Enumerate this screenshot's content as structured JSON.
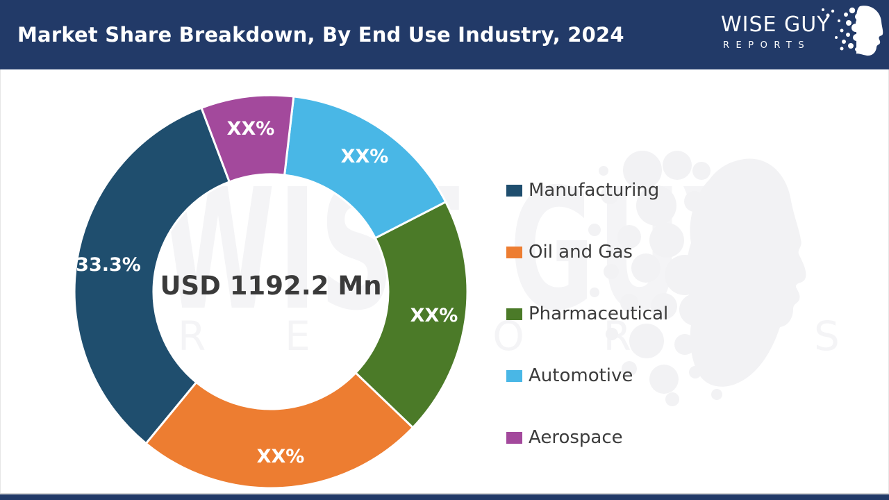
{
  "header": {
    "title": "Market Share Breakdown, By End Use Industry, 2024",
    "logo": {
      "line1": "WISE GUY",
      "line2": "REPORTS",
      "icon": "head-profile-dots-icon"
    }
  },
  "watermark": {
    "line1": "WISE GUY",
    "line2": "REPORTS",
    "icon": "head-profile-dots-icon"
  },
  "chart_data": {
    "type": "pie",
    "subtype": "donut",
    "title": "Market Share Breakdown, By End Use Industry, 2024",
    "center_label": "USD 1192.2 Mn",
    "start_angle_deg": 339.3,
    "direction": "counterclockwise",
    "inner_radius_ratio": 0.6,
    "legend_position": "right",
    "segments": [
      {
        "name": "Manufacturing",
        "label": "33.3%",
        "value_pct": 33.3,
        "color": "#1F4E6E"
      },
      {
        "name": "Oil and Gas",
        "label": "XX%",
        "value_pct": 23.8,
        "color": "#ED7D31"
      },
      {
        "name": "Pharmaceutical",
        "label": "XX%",
        "value_pct": 19.7,
        "color": "#4B7A28"
      },
      {
        "name": "Automotive",
        "label": "XX%",
        "value_pct": 15.6,
        "color": "#49B7E6"
      },
      {
        "name": "Aerospace",
        "label": "XX%",
        "value_pct": 7.6,
        "color": "#A3499C"
      }
    ]
  },
  "colors": {
    "header_bg": "#223A68",
    "footer_bg": "#223A68",
    "title_text": "#FFFFFF",
    "segment_label_text": "#FFFFFF",
    "center_text": "#3A3A3A",
    "legend_text": "#3C3C3C",
    "watermark_text": "#F4F4F6",
    "watermark_shape": "#F2F2F4",
    "gap_stroke": "#FFFFFF"
  }
}
